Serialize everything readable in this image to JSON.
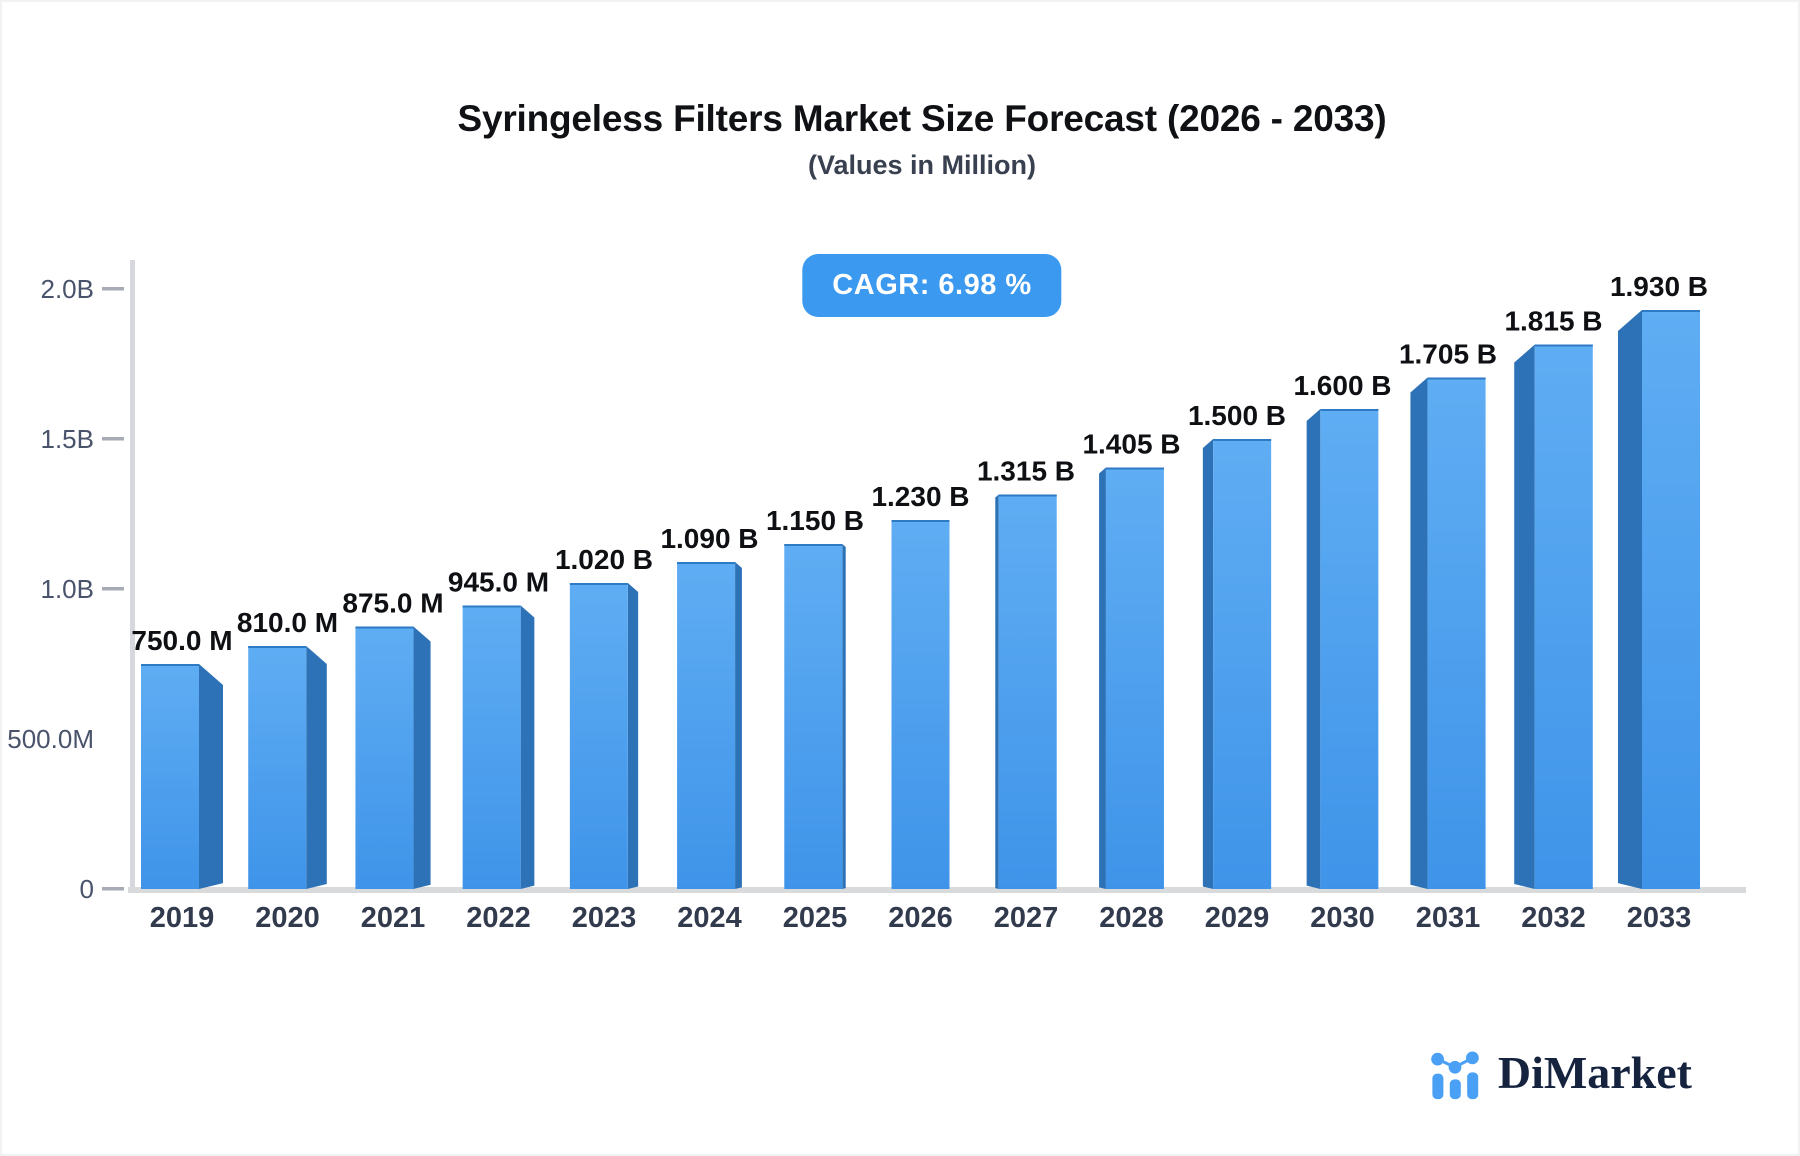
{
  "header": {
    "title": "Syringeless Filters Market Size Forecast (2026 - 2033)",
    "subtitle": "(Values in Million)"
  },
  "badge": {
    "label": "CAGR: 6.98 %",
    "color": "#3b99ef"
  },
  "chart_data": {
    "type": "bar",
    "title": "Syringeless Filters Market Size Forecast (2026 - 2033)",
    "subtitle": "(Values in Million)",
    "xlabel": "",
    "ylabel": "",
    "ylim": [
      0,
      2.0
    ],
    "grid": "off",
    "legend": "none",
    "categories": [
      "2019",
      "2020",
      "2021",
      "2022",
      "2023",
      "2024",
      "2025",
      "2026",
      "2027",
      "2028",
      "2029",
      "2030",
      "2031",
      "2032",
      "2033"
    ],
    "values_billions": [
      0.75,
      0.81,
      0.875,
      0.945,
      1.02,
      1.09,
      1.15,
      1.23,
      1.315,
      1.405,
      1.5,
      1.6,
      1.705,
      1.815,
      1.93
    ],
    "value_labels": [
      "750.0 M",
      "810.0 M",
      "875.0 M",
      "945.0 M",
      "1.020 B",
      "1.090 B",
      "1.150 B",
      "1.230 B",
      "1.315 B",
      "1.405 B",
      "1.500 B",
      "1.600 B",
      "1.705 B",
      "1.815 B",
      "1.930 B"
    ],
    "y_ticks": [
      {
        "label": "2.0B",
        "value": 2.0,
        "tick": true
      },
      {
        "label": "1.5B",
        "value": 1.5,
        "tick": true
      },
      {
        "label": "1.0B",
        "value": 1.0,
        "tick": true
      },
      {
        "label": "500.0M",
        "value": 0.5,
        "tick": false
      },
      {
        "label": "0",
        "value": 0.0,
        "tick": true
      }
    ],
    "colors": {
      "bar_front_top": "#5fadf3",
      "bar_front_bottom": "#3f94e9",
      "bar_side": "#2d72b6",
      "bar_top_edge": "#2e7ac4",
      "axis_line": "#d6d8de",
      "baseline": "#d9dadc",
      "tick_dash": "#a6abb6",
      "y_label": "#49536b",
      "x_label": "#323a4d",
      "value_label": "#0e1013"
    }
  },
  "logo": {
    "text": "DiMarket",
    "icon": "mini-bar-chart-icon",
    "icon_color": "#4aa0f5",
    "text_color": "#16233f"
  }
}
